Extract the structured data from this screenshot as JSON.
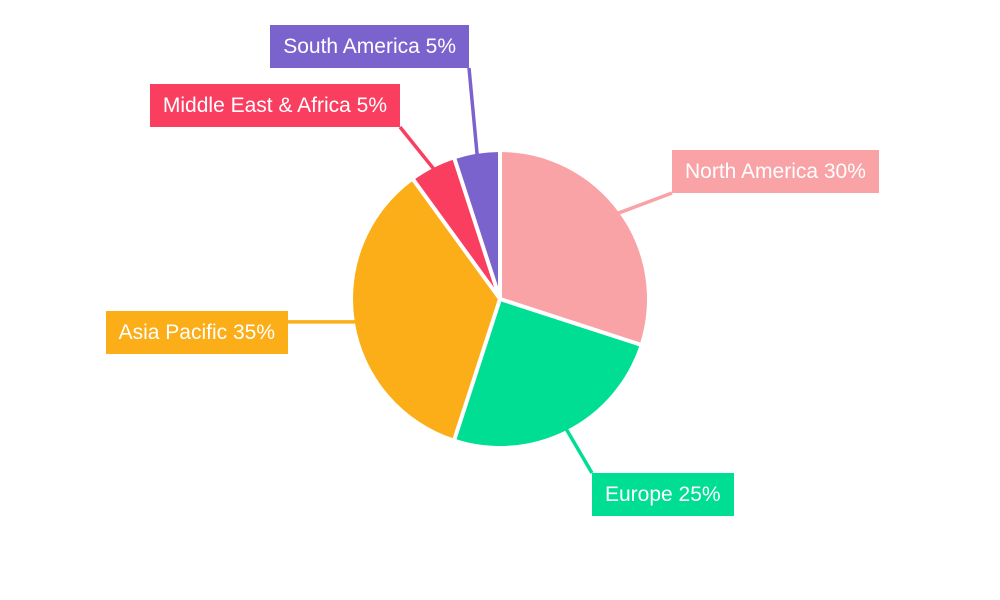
{
  "chart_data": {
    "type": "pie",
    "title": "",
    "background": "#FFFFFF",
    "label_text_color": "#FFFFFF",
    "separator_color": "#FFFFFF",
    "start_angle_deg": 0,
    "direction": "clockwise",
    "legend_position": "none",
    "label_style": "callout-boxes-with-leader-lines",
    "slices": [
      {
        "label": "North America",
        "value": 30,
        "pct_label": "North America 30%",
        "color": "#F9A3A7"
      },
      {
        "label": "Europe",
        "value": 25,
        "pct_label": "Europe 25%",
        "color": "#00DE94"
      },
      {
        "label": "Asia Pacific",
        "value": 35,
        "pct_label": "Asia Pacific 35%",
        "color": "#FBAE17"
      },
      {
        "label": "Middle East & Africa",
        "value": 5,
        "pct_label": "Middle East & Africa 5%",
        "color": "#F93E60"
      },
      {
        "label": "South America",
        "value": 5,
        "pct_label": "South America 5%",
        "color": "#7B63CE"
      }
    ]
  }
}
